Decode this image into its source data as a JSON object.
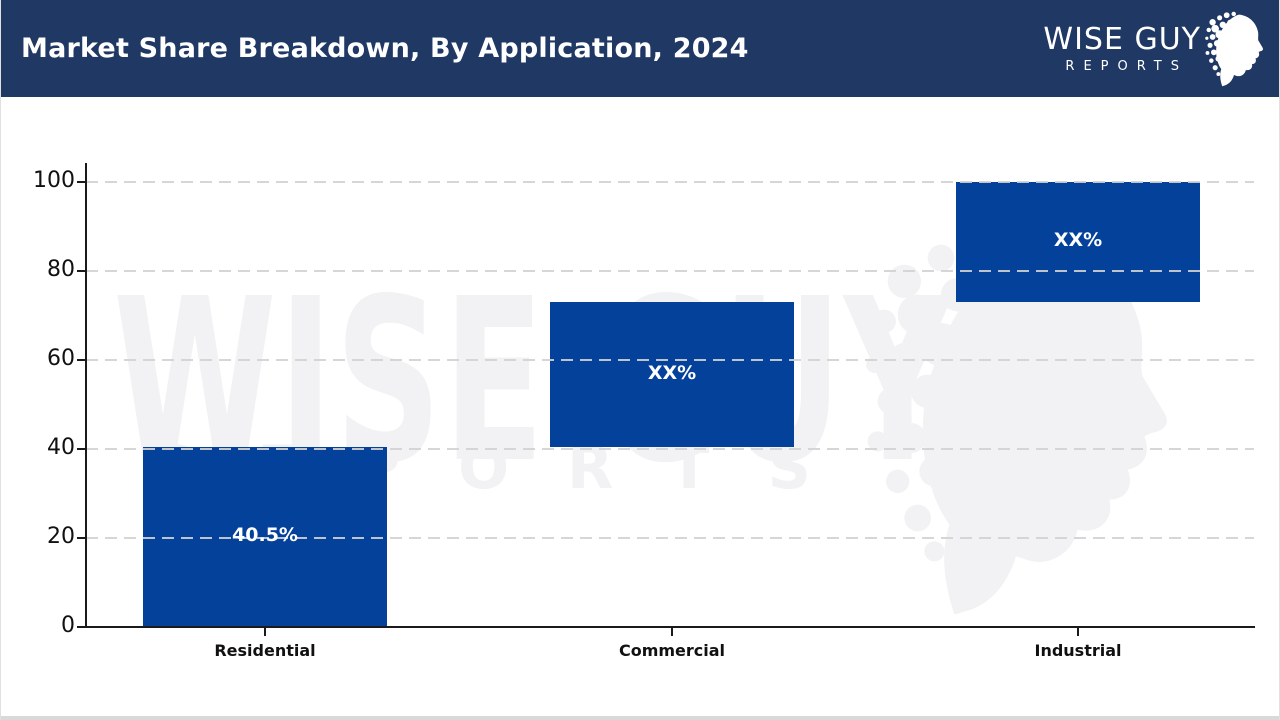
{
  "header": {
    "title": "Market Share Breakdown, By Application, 2024"
  },
  "logo": {
    "brand_line1": "WISE GUY",
    "brand_line2": "REPORTS",
    "face_icon": "dotted-head-profile-icon"
  },
  "watermark": {
    "line1": "WISE GUY",
    "line2": "REPORTS"
  },
  "chart_data": {
    "type": "bar",
    "variant": "waterfall",
    "title": "Market Share Breakdown, By Application, 2024",
    "categories": [
      "Residential",
      "Commercial",
      "Industrial"
    ],
    "series": [
      {
        "name": "Market share (%)",
        "segments": [
          {
            "category": "Residential",
            "start": 0,
            "end": 40.5,
            "label": "40.5%"
          },
          {
            "category": "Commercial",
            "start": 40.5,
            "end": 73,
            "label": "XX%"
          },
          {
            "category": "Industrial",
            "start": 73,
            "end": 100,
            "label": "XX%"
          }
        ]
      }
    ],
    "yticks": [
      0,
      20,
      40,
      60,
      80,
      100
    ],
    "ylim": [
      0,
      104
    ],
    "xlabel": "",
    "ylabel": "",
    "grid": "horizontal-dashed",
    "legend": "none",
    "bar_color": "#04419b",
    "bar_label_color": "#ffffff",
    "axis_color": "#1a1a1a",
    "grid_color": "#d2d2d2"
  },
  "colors": {
    "header_bg": "#1f3864",
    "header_text": "#ffffff",
    "page_bg": "#ffffff",
    "watermark": "#f2f2f4",
    "bottom_strip": "#d9d9d9"
  }
}
